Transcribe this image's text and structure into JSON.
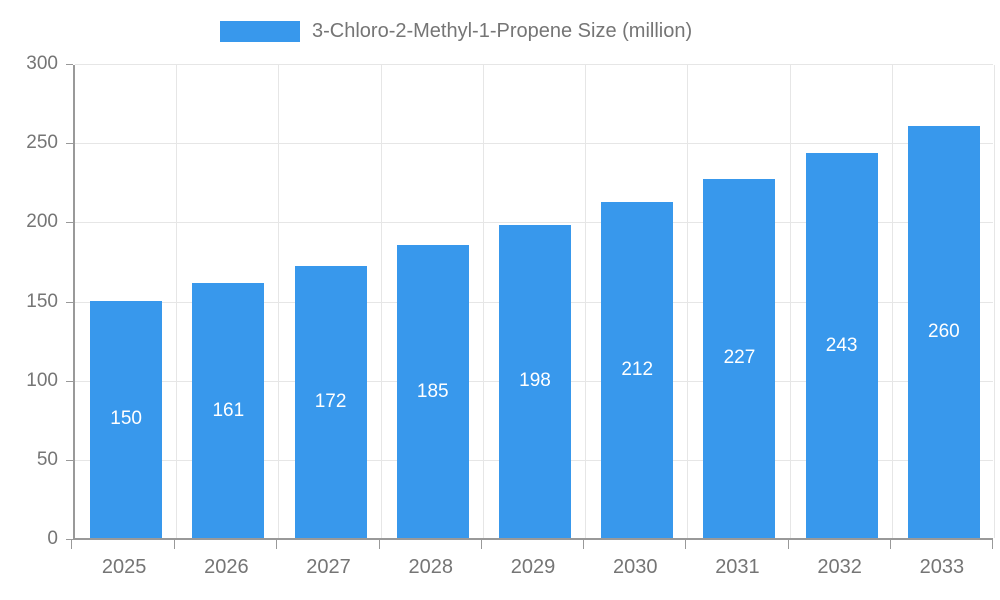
{
  "chart_data": {
    "type": "bar",
    "title": "3-Chloro-2-Methyl-1-Propene Size (million)",
    "categories": [
      "2025",
      "2026",
      "2027",
      "2028",
      "2029",
      "2030",
      "2031",
      "2032",
      "2033"
    ],
    "series": [
      {
        "name": "3-Chloro-2-Methyl-1-Propene Size (million)",
        "values": [
          150,
          161,
          172,
          185,
          198,
          212,
          227,
          243,
          260
        ]
      }
    ],
    "yticks": [
      "0",
      "50",
      "100",
      "150",
      "200",
      "250",
      "300"
    ],
    "ylim": [
      0,
      300
    ],
    "ytick_step": 50,
    "grid": true,
    "legend_position": "top-center",
    "xlabel": "",
    "ylabel": "",
    "colors": {
      "bar": "#3898ec",
      "value_label": "#ffffff",
      "axis": "#999999",
      "grid": "#e6e6e6",
      "text": "#757575"
    }
  }
}
